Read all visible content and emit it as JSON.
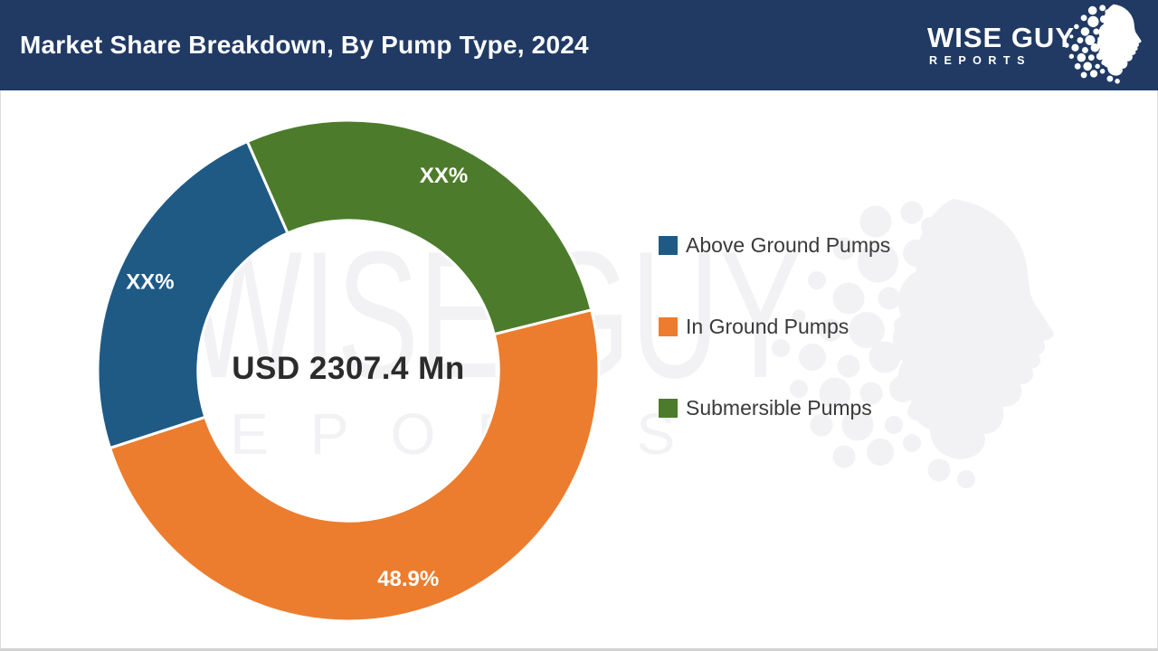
{
  "header": {
    "title": "Market Share Breakdown, By Pump Type, 2024",
    "logo": {
      "line1": "WISE GUY",
      "line2": "REPORTS"
    }
  },
  "watermark": {
    "line1": "WISE GUY",
    "line2": "REPORTS"
  },
  "chart_data": {
    "type": "donut",
    "title": "Market Share Breakdown, By Pump Type, 2024",
    "center_label": "USD 2307.4 Mn",
    "start_angle_deg": 252,
    "inner_radius_ratio": 0.6,
    "legend_position": "right",
    "segments": [
      {
        "label": "Above Ground Pumps",
        "value_pct": 23.4,
        "display_pct": "XX%",
        "color": "#1F5A85"
      },
      {
        "label": "Submersible Pumps",
        "value_pct": 27.7,
        "display_pct": "XX%",
        "color": "#4C7C2B"
      },
      {
        "label": "In Ground Pumps",
        "value_pct": 48.9,
        "display_pct": "48.9%",
        "color": "#EC7D2E"
      }
    ],
    "legend_order": [
      "Above Ground Pumps",
      "In Ground Pumps",
      "Submersible Pumps"
    ]
  },
  "colors": {
    "header_bg": "#203A64",
    "legend_text": "#3A3A3A",
    "center_text": "#2B2B2B",
    "watermark": "#F2F2F4"
  }
}
